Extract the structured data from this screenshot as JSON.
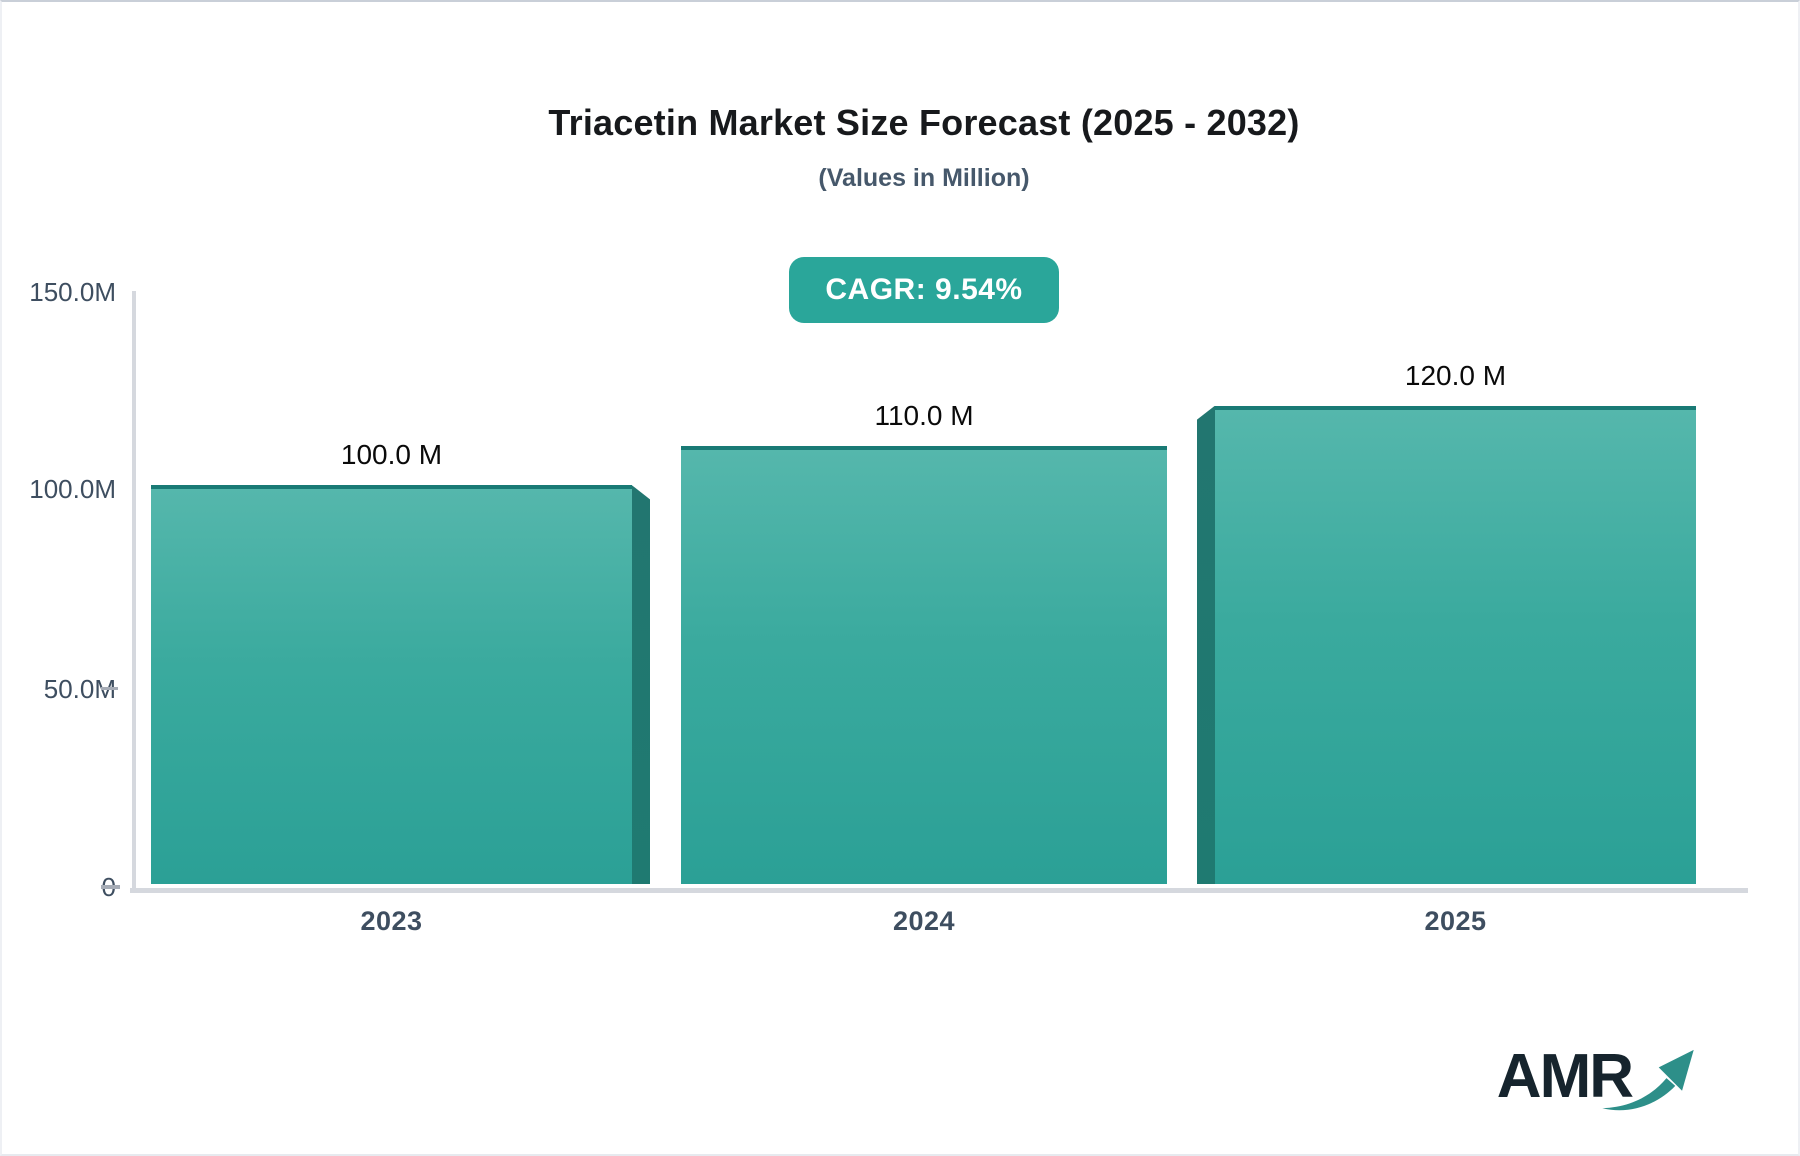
{
  "header": {
    "title": "Triacetin Market Size Forecast (2025 - 2032)",
    "subtitle": "(Values in Million)",
    "cagr_badge": "CAGR: 9.54%"
  },
  "chart_data": {
    "type": "bar",
    "title": "Triacetin Market Size Forecast (2025 - 2032)",
    "subtitle": "(Values in Million)",
    "cagr_percent": "9.54%",
    "categories": [
      "2023",
      "2024",
      "2025"
    ],
    "values": [
      100.0,
      110.0,
      120.0
    ],
    "value_labels": [
      "100.0 M",
      "110.0 M",
      "120.0 M"
    ],
    "unit": "Million",
    "xlabel": "",
    "ylabel": "",
    "ylim": [
      0,
      150
    ],
    "y_tick_labels": [
      "150.0M",
      "100.0M",
      "50.0M",
      "0"
    ],
    "grid": "off",
    "legend": "none",
    "colors": {
      "bar_gradient_top": "#55b7ac",
      "bar_gradient_bottom": "#2ba096",
      "bar_top_edge": "#197a75",
      "bar_3d_side": "#1f7a71",
      "badge_background": "#2aa69a",
      "badge_text": "#ffffff",
      "axis_line": "#d5d8de",
      "axis_label": "#3e4e60",
      "title_text": "#17191c",
      "subtitle_text": "#46586b",
      "value_label_text": "#0a0a0a"
    }
  },
  "branding": {
    "logo_text": "AMR",
    "logo_arrow_color": "#2d8f89"
  }
}
